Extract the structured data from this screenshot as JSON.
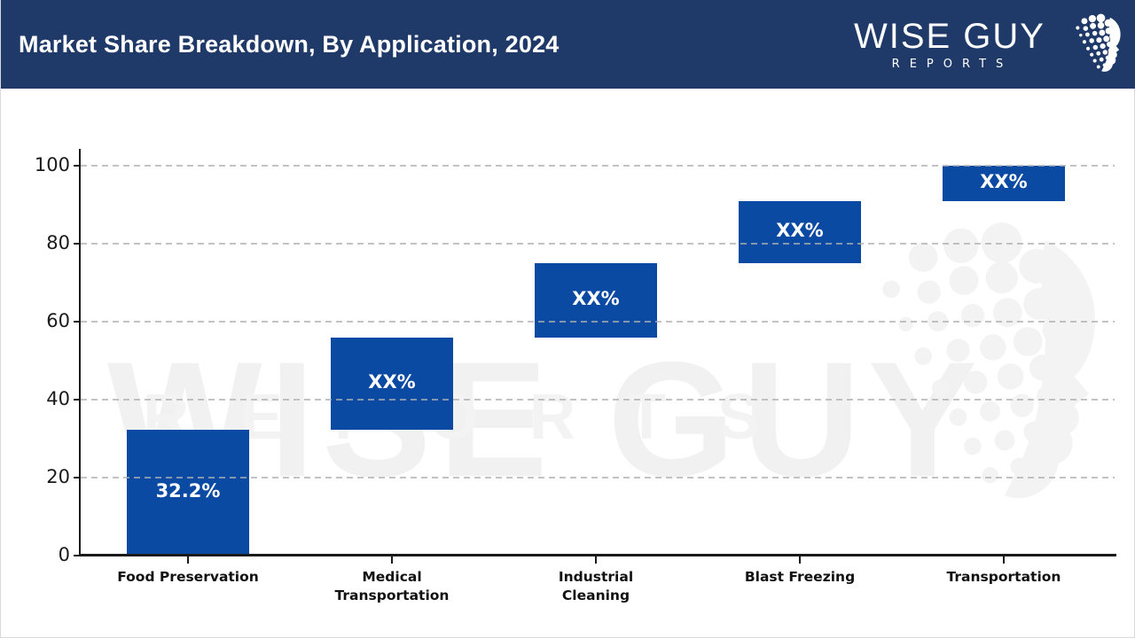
{
  "header": {
    "title": "Market Share Breakdown, By Application, 2024",
    "logo": {
      "line1": "WISE GUY",
      "line2": "REPORTS"
    }
  },
  "watermark": {
    "line1": "WISE GUY",
    "line2": "REPORTS"
  },
  "colors": {
    "header_bg": "#1f3a68",
    "bar_blue": "#0b4aa2",
    "axis": "#1a1a1a",
    "gridline": "#bdbdbd",
    "bar_label_text": "#ffffff",
    "watermark": "#f1f1f1"
  },
  "chart_data": {
    "type": "bar",
    "subtype": "waterfall",
    "title": "Market Share Breakdown, By Application, 2024",
    "xlabel": "",
    "ylabel": "",
    "ylim": [
      0,
      104
    ],
    "yticks": [
      0,
      20,
      40,
      60,
      80,
      100
    ],
    "grid": "horizontal dashed, drawn over bars",
    "legend": "none",
    "categories": [
      "Food Preservation",
      "Medical Transportation",
      "Industrial Cleaning",
      "Blast Freezing",
      "Transportation"
    ],
    "segments": [
      {
        "category_lines": [
          "Food Preservation"
        ],
        "start": 0,
        "end": 32.2,
        "label": "32.2%"
      },
      {
        "category_lines": [
          "Medical",
          "Transportation"
        ],
        "start": 32.2,
        "end": 55.9,
        "label": "XX%"
      },
      {
        "category_lines": [
          "Industrial",
          "Cleaning"
        ],
        "start": 55.9,
        "end": 75.0,
        "label": "XX%"
      },
      {
        "category_lines": [
          "Blast Freezing"
        ],
        "start": 75.0,
        "end": 91.0,
        "label": "XX%"
      },
      {
        "category_lines": [
          "Transportation"
        ],
        "start": 91.0,
        "end": 100.0,
        "label": "XX%"
      }
    ]
  }
}
